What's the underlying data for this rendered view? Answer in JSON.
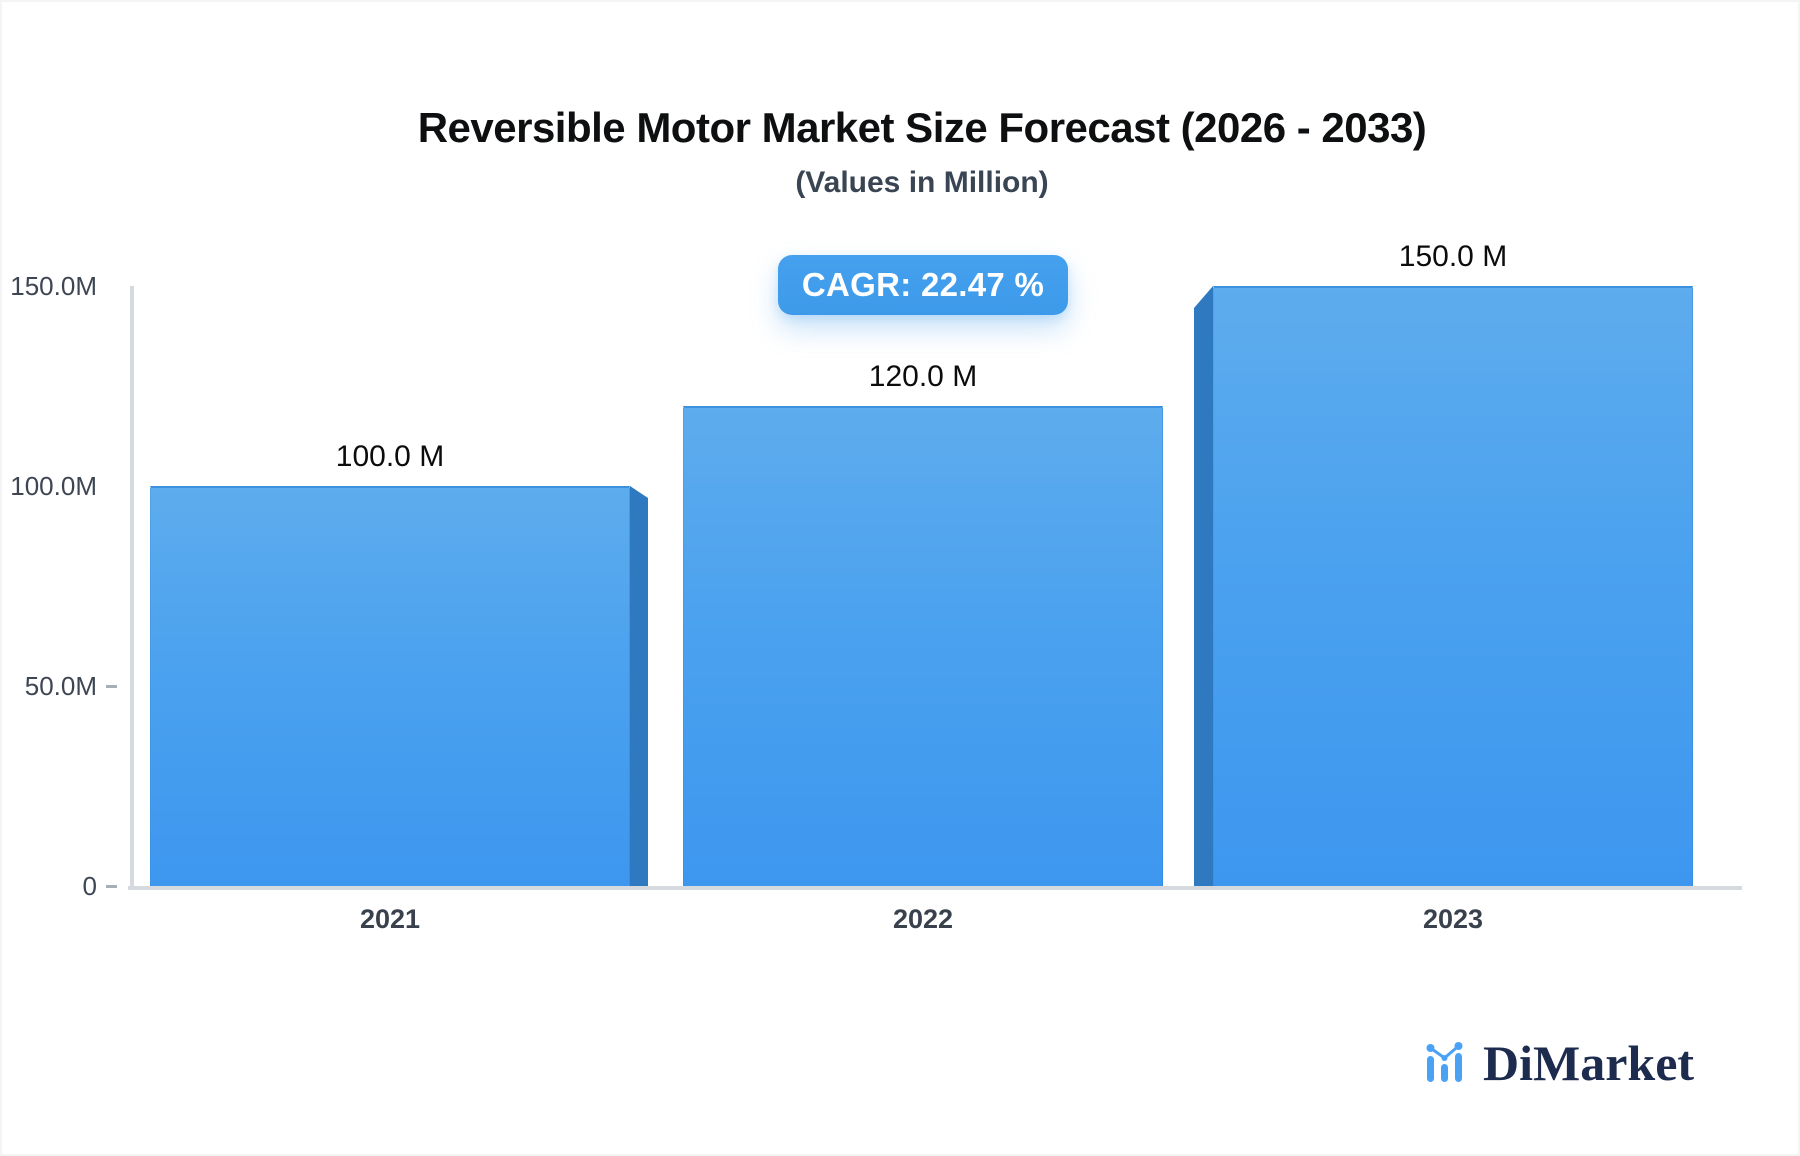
{
  "header": {
    "title": "Reversible Motor Market Size Forecast (2026 - 2033)",
    "subtitle": "(Values in Million)"
  },
  "badge": {
    "label": "CAGR: 22.47 %"
  },
  "chart_data": {
    "type": "bar",
    "categories": [
      "2021",
      "2022",
      "2023"
    ],
    "values": [
      100,
      120,
      150
    ],
    "bar_labels": [
      "100.0 M",
      "120.0 M",
      "150.0 M"
    ],
    "y_ticks": [
      {
        "value": 150,
        "label": "150.0M"
      },
      {
        "value": 100,
        "label": "100.0M"
      },
      {
        "value": 50,
        "label": "50.0M"
      },
      {
        "value": 0,
        "label": "0"
      }
    ],
    "ylim": [
      0,
      150
    ],
    "unit": "Million",
    "cagr_percent": 22.47,
    "title": "Reversible Motor Market Size Forecast (2026 - 2033)",
    "legend": "none",
    "grid": "off",
    "colors": {
      "bar_gradient_top": "#5daced",
      "bar_gradient_bottom": "#3e97ef",
      "bar_3d_side": "#2e79bf",
      "badge_blue": "#3d9aea",
      "axis_gray": "#d6d9de",
      "label_dark": "#3e4654"
    }
  },
  "watermark": {
    "brand": "DiMarket"
  }
}
